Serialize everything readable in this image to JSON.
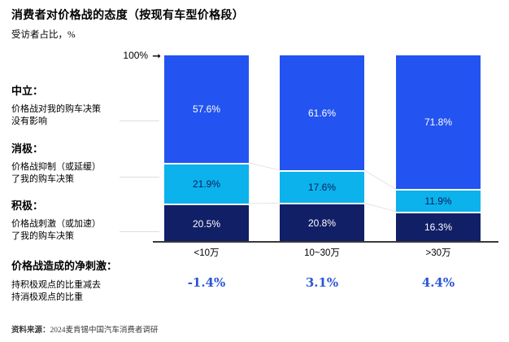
{
  "title": "消费者对价格战的态度（按现有车型价格段）",
  "subtitle": "受访者占比，%",
  "axis_marker": "100%",
  "left_labels": [
    {
      "term": "中立：",
      "desc_line1": "价格战对我的购车决策",
      "desc_line2": "没有影响"
    },
    {
      "term": "消极：",
      "desc_line1": "价格战抑制（或延缓）",
      "desc_line2": "了我的购车决策"
    },
    {
      "term": "积极：",
      "desc_line1": "价格战刺激（或加速）",
      "desc_line2": "了我的购车决策"
    }
  ],
  "net_section": {
    "heading": "价格战造成的净刺激：",
    "desc_line1": "持积极观点的比重减去",
    "desc_line2": "持消极观点的比重",
    "values": [
      "-1.4%",
      "3.1%",
      "4.4%"
    ]
  },
  "source": {
    "prefix": "资料来源：",
    "text": "2024麦肯锡中国汽车消费者调研"
  },
  "colors": {
    "neutral_blue": "#2353F0",
    "negative_cyan": "#0BB2EC",
    "positive_navy": "#111F66",
    "net_value_blue": "#2B55D6",
    "axis": "#3a3a3a",
    "mid_segment_text": "#0d1c5e",
    "segment_text_light": "#ffffff",
    "connector_gray": "#e4e4e4"
  },
  "chart_data": {
    "type": "bar",
    "stacked": true,
    "percent_stack": true,
    "title": "消费者对价格战的态度（按现有车型价格段）",
    "ylabel": "受访者占比，%",
    "ylim": [
      0,
      100
    ],
    "grid": false,
    "legend_position": "left-labels",
    "categories": [
      "<10万",
      "10~30万",
      ">30万"
    ],
    "series": [
      {
        "name": "中立：价格战对我的购车决策没有影响",
        "color": "#2353F0",
        "values": [
          57.6,
          61.6,
          71.8
        ]
      },
      {
        "name": "消极：价格战抑制（或延缓）了我的购车决策",
        "color": "#0BB2EC",
        "values": [
          21.9,
          17.6,
          11.9
        ]
      },
      {
        "name": "积极：价格战刺激（或加速）了我的购车决策",
        "color": "#111F66",
        "values": [
          20.5,
          20.8,
          16.3
        ]
      }
    ],
    "annotations": {
      "net_stimulus_label": "价格战造成的净刺激：持积极观点的比重减去持消极观点的比重",
      "net_stimulus_values": [
        -1.4,
        3.1,
        4.4
      ]
    },
    "source": "资料来源：2024麦肯锡中国汽车消费者调研"
  }
}
